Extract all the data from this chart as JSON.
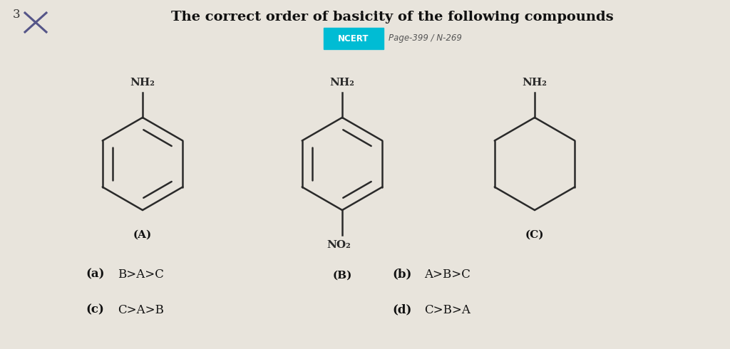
{
  "title": "The correct order of basicity of the following compounds",
  "ncert_label": "NCERT",
  "page_ref": "Page-399 / N-269",
  "background_color": "#e8e4dc",
  "compound_A_label": "(A)",
  "compound_B_label": "(B)",
  "compound_C_label": "(C)",
  "nh2_label": "NH₂",
  "no2_label": "NO₂",
  "options": [
    {
      "letter": "(a)",
      "text": "B>A>C"
    },
    {
      "letter": "(b)",
      "text": "A>B>C"
    },
    {
      "letter": "(c)",
      "text": "C>A>B"
    },
    {
      "letter": "(d)",
      "text": "C>B>A"
    }
  ],
  "ncert_bg": "#00bcd4",
  "ncert_text_color": "#ffffff",
  "title_color": "#111111",
  "option_color": "#111111",
  "line_color": "#2a2a2a",
  "ring_r": 0.65,
  "lw": 1.8
}
